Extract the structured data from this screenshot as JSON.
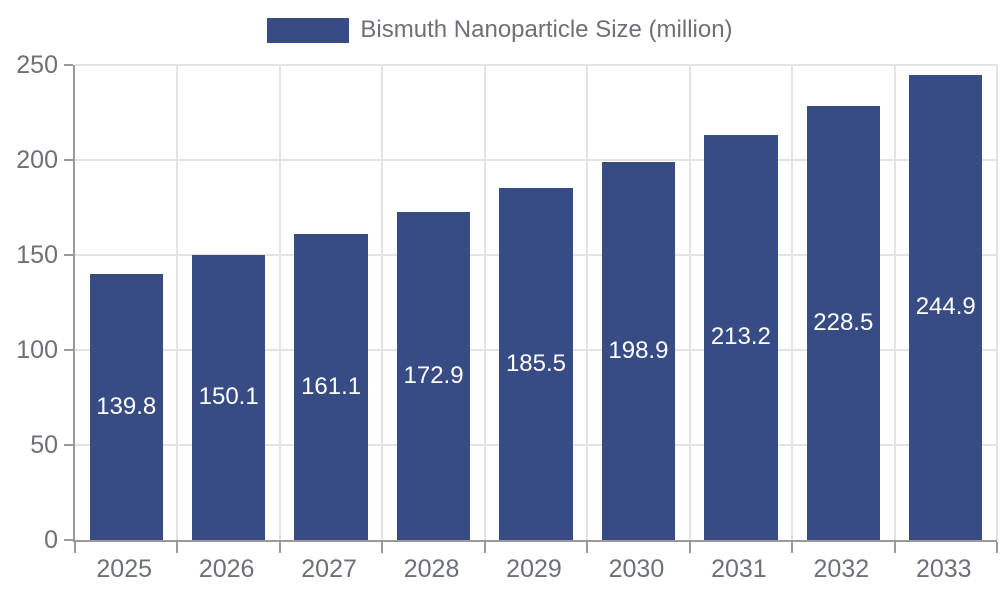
{
  "chart_data": {
    "type": "bar",
    "title": "Bismuth Nanoparticle Size (million)",
    "categories": [
      "2025",
      "2026",
      "2027",
      "2028",
      "2029",
      "2030",
      "2031",
      "2032",
      "2033"
    ],
    "values": [
      139.8,
      150.1,
      161.1,
      172.9,
      185.5,
      198.9,
      213.2,
      228.5,
      244.9
    ],
    "value_labels": [
      "139.8",
      "150.1",
      "161.1",
      "172.9",
      "185.5",
      "198.9",
      "213.2",
      "228.5",
      "244.9"
    ],
    "xlabel": "",
    "ylabel": "",
    "ylim": [
      0,
      250
    ],
    "yticks": [
      0,
      50,
      100,
      150,
      200,
      250
    ],
    "legend_position": "top-center",
    "grid": true,
    "colors": {
      "bar": "#374B85",
      "bar_label": "#ffffff",
      "axis_text": "#6e7079",
      "axis_line": "#9a9a9a",
      "gridline": "#e3e3e3",
      "background": "#ffffff"
    }
  }
}
